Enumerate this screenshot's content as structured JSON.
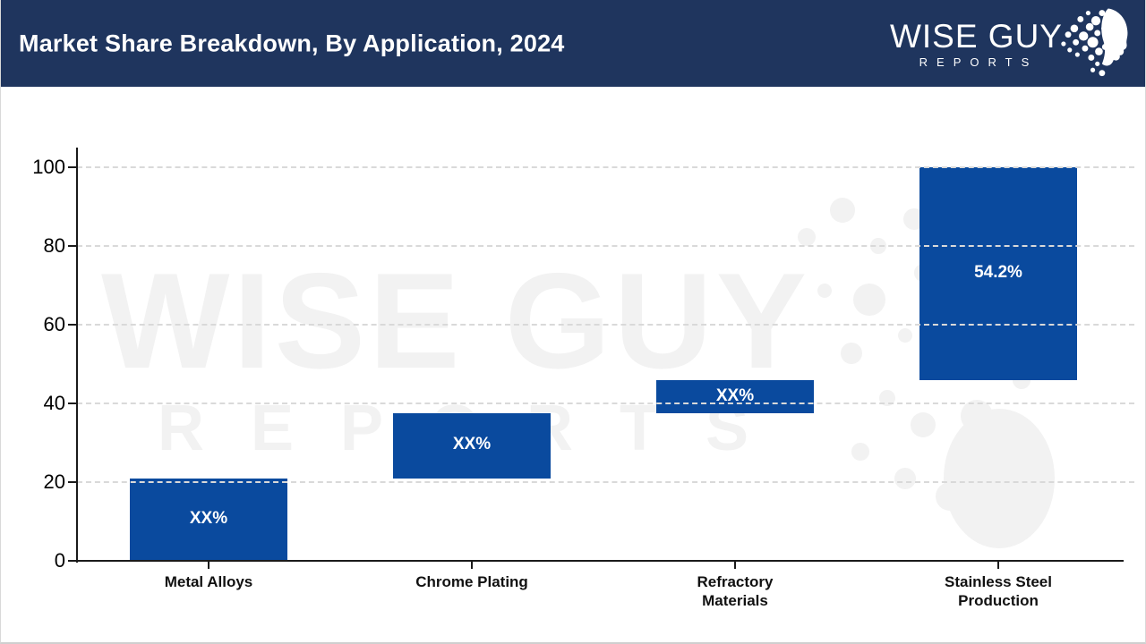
{
  "header": {
    "title": "Market Share Breakdown, By Application, 2024",
    "logo": {
      "line1": "WISE GUY",
      "line2": "REPORTS"
    }
  },
  "watermark": {
    "line1": "WISE GUY",
    "line2": "REPORTS"
  },
  "colors": {
    "header_bg": "#1f355e",
    "bar": "#0a4a9e",
    "grid": "#d9d9d9",
    "axis": "#1a1a1a",
    "watermark": "#f2f2f2",
    "bar_label_text": "#ffffff"
  },
  "chart_data": {
    "type": "bar",
    "variant": "floating-waterfall",
    "title": "Market Share Breakdown, By Application, 2024",
    "xlabel": "",
    "ylabel": "",
    "categories": [
      "Metal Alloys",
      "Chrome Plating",
      "Refractory Materials",
      "Stainless Steel Production"
    ],
    "category_label_lines": [
      [
        "Metal Alloys"
      ],
      [
        "Chrome Plating"
      ],
      [
        "Refractory",
        "Materials"
      ],
      [
        "Stainless Steel",
        "Production"
      ]
    ],
    "segments": [
      {
        "category": "Metal Alloys",
        "start": 0,
        "end": 21,
        "value": 21,
        "label": "XX%"
      },
      {
        "category": "Chrome Plating",
        "start": 21,
        "end": 37.5,
        "value": 16.5,
        "label": "XX%"
      },
      {
        "category": "Refractory Materials",
        "start": 37.5,
        "end": 45.8,
        "value": 8.3,
        "label": "XX%"
      },
      {
        "category": "Stainless Steel Production",
        "start": 45.8,
        "end": 100,
        "value": 54.2,
        "label": "54.2%"
      }
    ],
    "yticks": [
      0,
      20,
      40,
      60,
      80,
      100
    ],
    "ylim": [
      0,
      105
    ],
    "grid": "horizontal-dashed",
    "legend": "none",
    "bar_color": "#0a4a9e"
  }
}
